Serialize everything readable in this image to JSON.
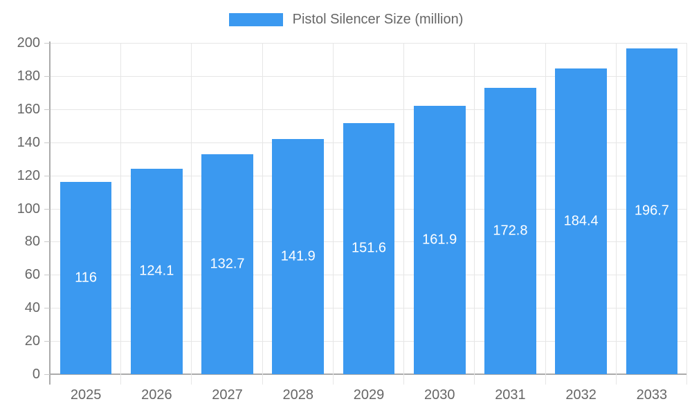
{
  "chart_data": {
    "type": "bar",
    "title": "Pistol Silencer Size (million)",
    "categories": [
      "2025",
      "2026",
      "2027",
      "2028",
      "2029",
      "2030",
      "2031",
      "2032",
      "2033"
    ],
    "series": [
      {
        "name": "Pistol Silencer Size (million)",
        "values": [
          116,
          124.1,
          132.7,
          141.9,
          151.6,
          161.9,
          172.8,
          184.4,
          196.7
        ],
        "labels": [
          "116",
          "124.1",
          "132.7",
          "141.9",
          "151.6",
          "161.9",
          "172.8",
          "184.4",
          "196.7"
        ]
      }
    ],
    "xlabel": "",
    "ylabel": "",
    "ylim": [
      0,
      200
    ],
    "y_ticks": [
      0,
      20,
      40,
      60,
      80,
      100,
      120,
      140,
      160,
      180,
      200
    ],
    "grid": true,
    "legend_position": "top",
    "value_labels_position": "inside-center",
    "colors": {
      "bar": "#3B99F0",
      "bar_label": "#FFFFFF",
      "axis_text": "#666666",
      "grid_line": "#E6E6E6",
      "axis_line": "#ABABAB",
      "tick": "#C9C9C9",
      "background": "#FFFFFF"
    }
  }
}
